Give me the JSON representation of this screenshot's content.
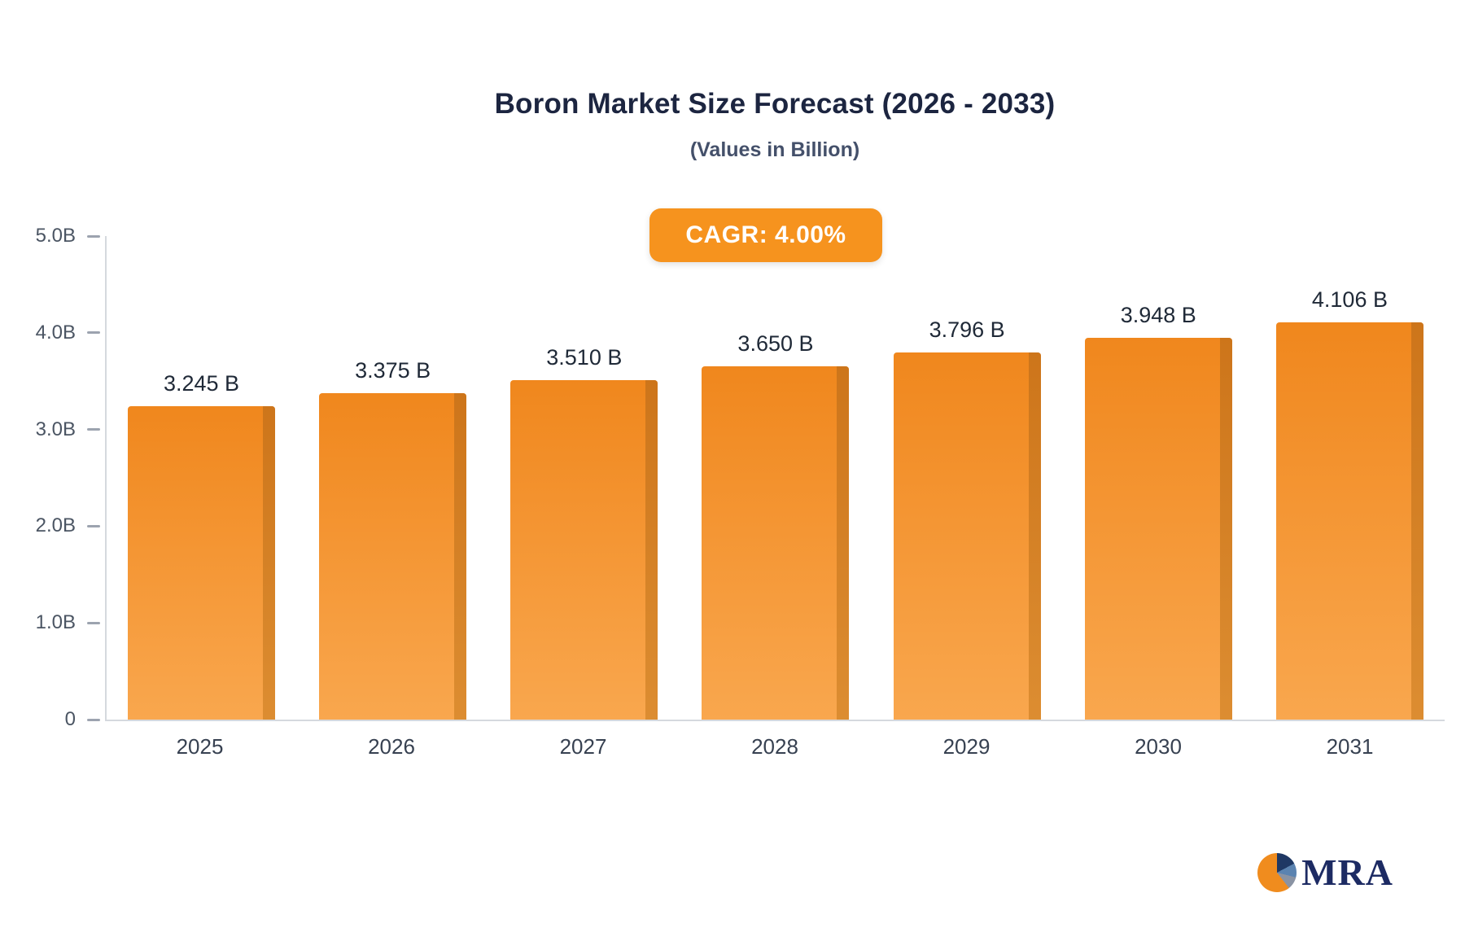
{
  "chart_data": {
    "type": "bar",
    "title": "Boron Market Size Forecast (2026 - 2033)",
    "subtitle": "(Values in Billion)",
    "cagr_label": "CAGR: 4.00%",
    "categories": [
      "2025",
      "2026",
      "2027",
      "2028",
      "2029",
      "2030",
      "2031"
    ],
    "values": [
      3.245,
      3.375,
      3.51,
      3.65,
      3.796,
      3.948,
      4.106
    ],
    "value_labels": [
      "3.245 B",
      "3.375 B",
      "3.510 B",
      "3.650 B",
      "3.796 B",
      "3.948 B",
      "4.106 B"
    ],
    "xlabel": "",
    "ylabel": "",
    "ylim": [
      0,
      5
    ],
    "yticks": [
      {
        "value": 0,
        "label": "0"
      },
      {
        "value": 1,
        "label": "1.0B"
      },
      {
        "value": 2,
        "label": "2.0B"
      },
      {
        "value": 3,
        "label": "3.0B"
      },
      {
        "value": 4,
        "label": "4.0B"
      },
      {
        "value": 5,
        "label": "5.0B"
      }
    ],
    "grid": false,
    "legend": null
  },
  "colors": {
    "bar_top": "#f0871d",
    "bar_bottom": "#f9a74e",
    "bar_side": "#c9731a",
    "accent": "#f6931e",
    "title": "#1c2540"
  },
  "logo": {
    "text": "MRA",
    "icon": "pie-logo-icon"
  }
}
